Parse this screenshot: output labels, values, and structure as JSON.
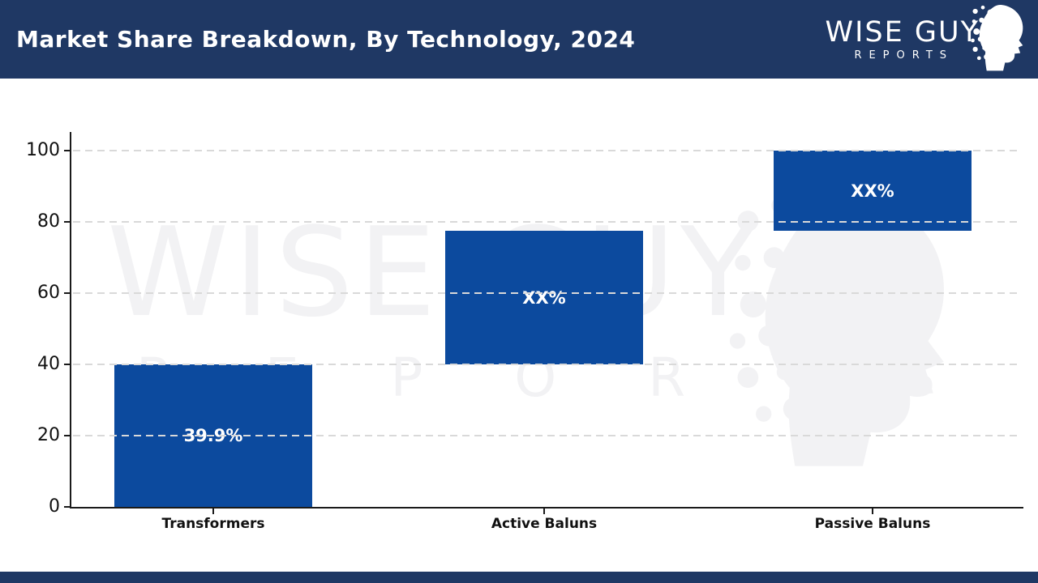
{
  "header": {
    "title": "Market Share Breakdown, By Technology, 2024",
    "logo": {
      "wordmark": "WISE GUY",
      "subtext": "REPORTS"
    }
  },
  "watermark": {
    "wordmark": "WISE GUY",
    "subtext": "R E P O R T S"
  },
  "chart_data": {
    "type": "bar",
    "subtype": "floating-segment-waterfall",
    "title": "Market Share Breakdown, By Technology, 2024",
    "categories": [
      "Transformers",
      "Active Baluns",
      "Passive Baluns"
    ],
    "segments": [
      {
        "category": "Transformers",
        "start": 0,
        "end": 39.9,
        "label": "39.9%"
      },
      {
        "category": "Active Baluns",
        "start": 39.9,
        "end": 77.5,
        "label": "XX%"
      },
      {
        "category": "Passive Baluns",
        "start": 77.5,
        "end": 100,
        "label": "XX%"
      }
    ],
    "xlabel": "",
    "ylabel": "",
    "yticks": [
      0,
      20,
      40,
      60,
      80,
      100
    ],
    "ylim": [
      0,
      105
    ],
    "grid": "horizontal-dashed",
    "legend": "none",
    "bar_color": "#0c4a9e",
    "value_label_color": "#ffffff"
  },
  "colors": {
    "header_bg": "#1f3864",
    "footer_bg": "#1f3864",
    "bar": "#0c4a9e",
    "axis": "#1a1a1a",
    "grid": "#d9d9d9",
    "watermark": "#f2f2f4"
  }
}
